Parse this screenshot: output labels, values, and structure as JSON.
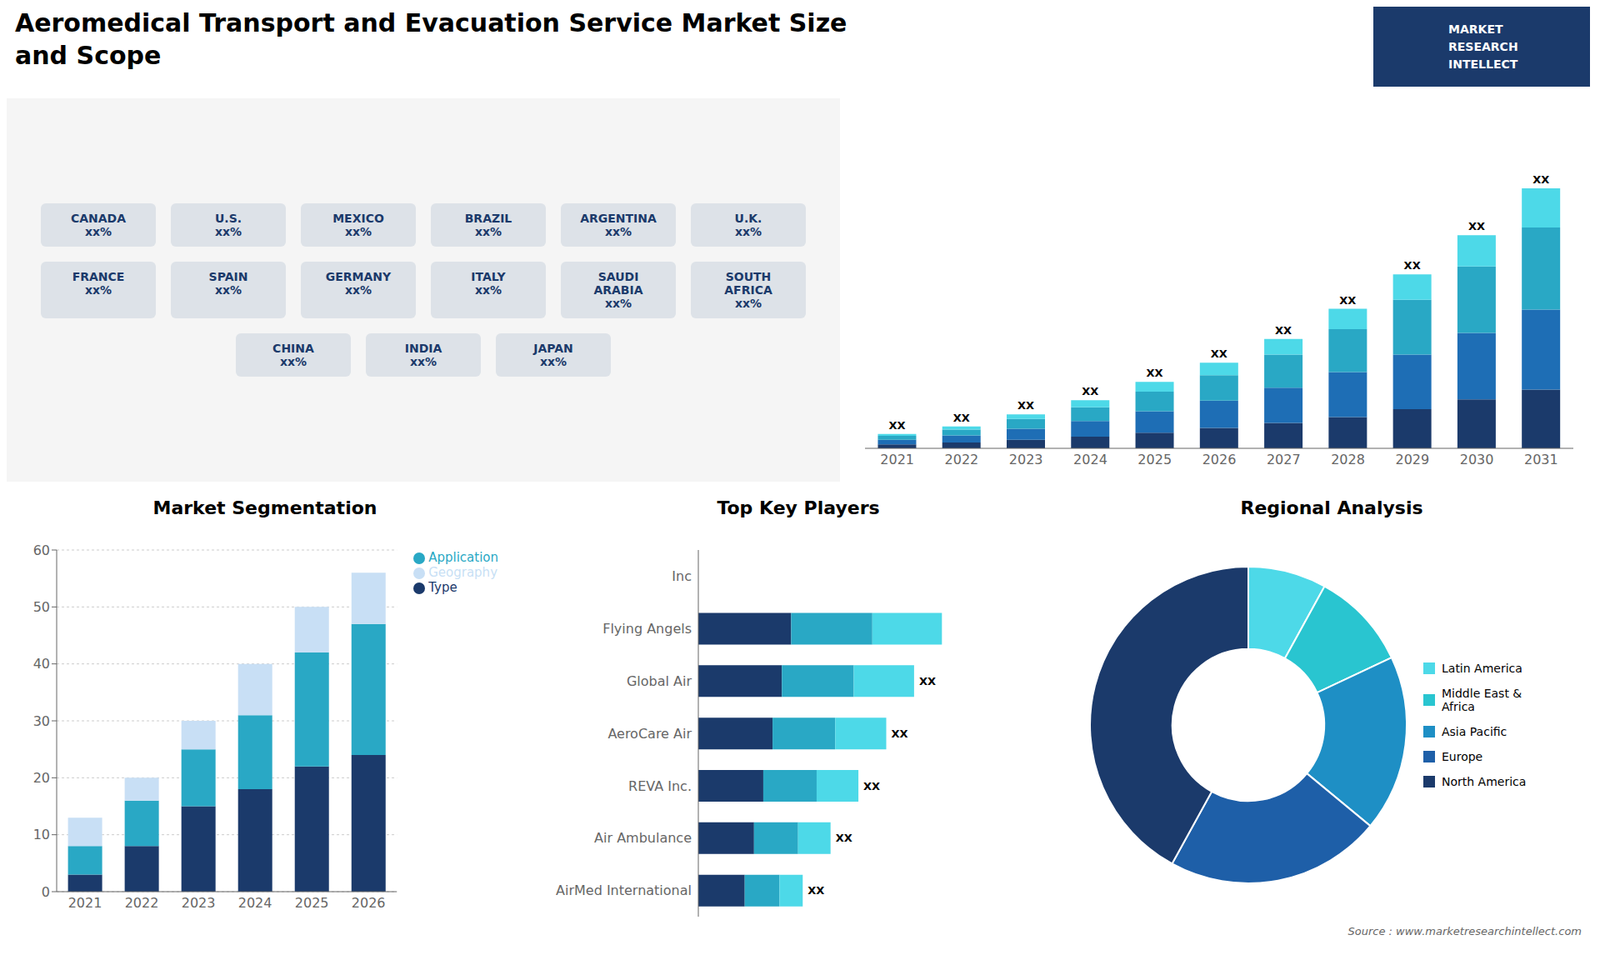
{
  "chart_data": [
    {
      "type": "map",
      "title": "Aeromedical Transport and Evacuation Service Market Size\nand Scope",
      "annotations": [
        "CANADA\nxx%",
        "U.S.\nxx%",
        "MEXICO\nxx%",
        "BRAZIL\nxx%",
        "ARGENTINA\nxx%",
        "U.K.\nxx%",
        "FRANCE\nxx%",
        "SPAIN\nxx%",
        "GERMANY\nxx%",
        "ITALY\nxx%",
        "SAUDI\nARABIA\nxx%",
        "SOUTH\nAFRICA\nxx%",
        "CHINA\nxx%",
        "INDIA\nxx%",
        "JAPAN\nxx%"
      ]
    },
    {
      "type": "logo",
      "color": "#1b3a6b",
      "annotations": [
        "MARKET",
        "RESEARCH",
        "INTELLECT"
      ]
    },
    {
      "type": "bar",
      "stacked": true,
      "categories": [
        "2021",
        "2022",
        "2023",
        "2024",
        "2025",
        "2026",
        "2027",
        "2028",
        "2029",
        "2030",
        "2031"
      ],
      "series": [
        {
          "color": "#1b3a6b",
          "values": [
            1.0,
            1.5,
            2.2,
            3.0,
            4.0,
            5.2,
            6.5,
            8.0,
            10.0,
            12.5,
            15.0
          ]
        },
        {
          "color": "#1e6eb5",
          "values": [
            1.2,
            1.8,
            2.8,
            4.0,
            5.5,
            7.0,
            9.0,
            11.5,
            14.0,
            17.0,
            20.5
          ]
        },
        {
          "color": "#29a8c5",
          "values": [
            1.0,
            1.5,
            2.5,
            3.5,
            5.0,
            6.5,
            8.5,
            11.0,
            14.0,
            17.0,
            21.0
          ]
        },
        {
          "color": "#4dd9e8",
          "values": [
            0.5,
            0.8,
            1.2,
            1.8,
            2.5,
            3.2,
            4.0,
            5.2,
            6.5,
            8.0,
            10.0
          ]
        }
      ],
      "annotations": [
        "XX"
      ],
      "ylim": [
        0,
        83.125
      ],
      "tick_labels": "x",
      "grid": false
    },
    {
      "type": "bar",
      "stacked": true,
      "title": "Market Segmentation",
      "categories": [
        "2021",
        "2022",
        "2023",
        "2024",
        "2025",
        "2026"
      ],
      "series": [
        {
          "name": "Type",
          "color": "#1b3a6b",
          "values": [
            3,
            8,
            15,
            18,
            22,
            24
          ]
        },
        {
          "name": "Application",
          "color": "#29a8c5",
          "values": [
            5,
            8,
            10,
            13,
            20,
            23
          ]
        },
        {
          "name": "Geography",
          "color": "#c8dff5",
          "values": [
            5,
            4,
            5,
            9,
            8,
            9
          ]
        }
      ],
      "ylim": [
        0,
        60
      ],
      "yticks": [
        0,
        10,
        20,
        30,
        40,
        50,
        60
      ],
      "grid": true,
      "legend": "right"
    },
    {
      "type": "bar",
      "stacked": true,
      "orientation": "horizontal",
      "title": "Top Key Players",
      "categories": [
        "Inc",
        "Flying Angels",
        "Global Air",
        "AeroCare Air",
        "REVA Inc.",
        "Air Ambulance",
        "AirMed International"
      ],
      "series": [
        {
          "color": "#1b3a6b",
          "values": [
            0.0,
            4.0,
            3.6,
            3.2,
            2.8,
            2.4,
            2.0
          ]
        },
        {
          "color": "#29a8c5",
          "values": [
            0.0,
            3.5,
            3.1,
            2.7,
            2.3,
            1.9,
            1.5
          ]
        },
        {
          "color": "#4dd9e8",
          "values": [
            0.0,
            3.0,
            2.6,
            2.2,
            1.8,
            1.4,
            1.0
          ]
        }
      ],
      "annotations": [
        "XX"
      ],
      "xlim": [
        0,
        13.65
      ],
      "tick_labels": "y",
      "grid": false
    },
    {
      "type": "pie",
      "title": "Regional Analysis",
      "categories": [
        "Latin America",
        "Middle East &\nAfrica",
        "Asia Pacific",
        "Europe",
        "North America"
      ],
      "values": [
        8,
        10,
        18,
        22,
        42
      ],
      "colors": [
        "#4dd9e8",
        "#29c5d0",
        "#1e8fc5",
        "#1e5fa8",
        "#1b3a6b"
      ],
      "legend": "right"
    },
    {
      "type": "source",
      "annotations": [
        "Source : www.marketresearchintellect.com"
      ]
    }
  ]
}
